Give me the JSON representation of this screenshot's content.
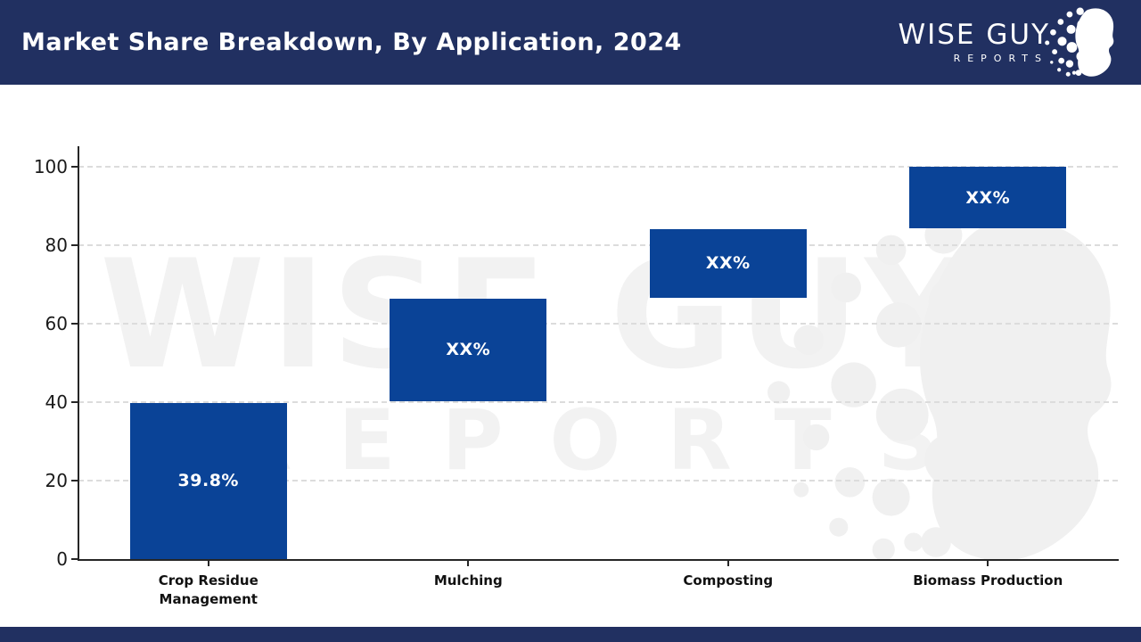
{
  "header": {
    "title": "Market Share Breakdown, By Application, 2024",
    "logo": {
      "primary": "WISE GUY",
      "secondary": "REPORTS"
    }
  },
  "watermark": {
    "line1": "WISE GUY",
    "line2": "REPORTS"
  },
  "colors": {
    "header_bg": "#213061",
    "bar": "#0a4397",
    "grid": "#dcdcdc",
    "axis": "#262626",
    "bar_label_text": "#ffffff",
    "watermark": "#f2f2f2"
  },
  "chart_data": {
    "type": "bar",
    "subtype": "waterfall",
    "title": "Market Share Breakdown, By Application, 2024",
    "categories": [
      "Crop Residue Management",
      "Mulching",
      "Composting",
      "Biomass Production"
    ],
    "segments": [
      {
        "category": "Crop Residue Management",
        "label": "39.8%",
        "start": 0,
        "end": 39.8
      },
      {
        "category": "Mulching",
        "label": "XX%",
        "start": 40.2,
        "end": 66.4
      },
      {
        "category": "Composting",
        "label": "XX%",
        "start": 66.6,
        "end": 84.1
      },
      {
        "category": "Biomass Production",
        "label": "XX%",
        "start": 84.3,
        "end": 100
      }
    ],
    "ylim": [
      0,
      100
    ],
    "yticks": [
      0,
      20,
      40,
      60,
      80,
      100
    ],
    "xlabel": "",
    "ylabel": "",
    "grid": "horizontal-dashed",
    "legend": "none"
  }
}
